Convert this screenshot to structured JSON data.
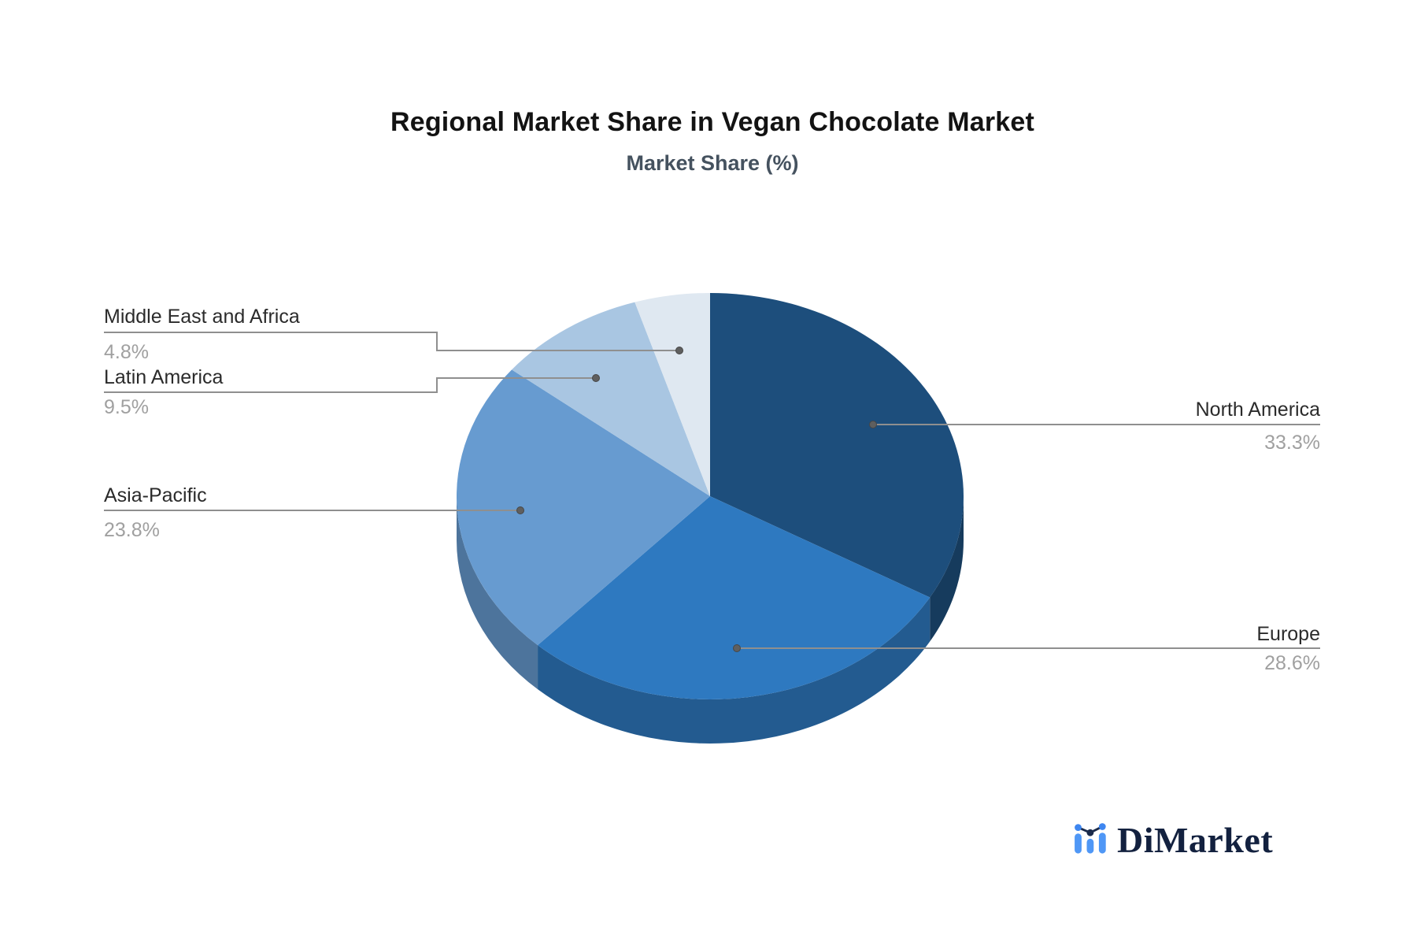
{
  "page": {
    "background": "#ffffff"
  },
  "chart_data": {
    "type": "pie",
    "title": "Regional Market Share in Vegan Chocolate Market",
    "subtitle": "Market Share (%)",
    "unit": "%",
    "labels": [
      "North America",
      "Europe",
      "Asia-Pacific",
      "Latin America",
      "Middle East and Africa"
    ],
    "values": [
      33.3,
      28.6,
      23.8,
      9.5,
      4.8
    ],
    "value_labels": [
      "33.3%",
      "28.6%",
      "23.8%",
      "9.5%",
      "4.8%"
    ],
    "colors": [
      "#1d4e7c",
      "#2e79c0",
      "#679bd0",
      "#a9c6e2",
      "#dfe8f1"
    ],
    "style": "3d-pie",
    "start_angle_deg": 0,
    "clockwise": true,
    "legend": "none",
    "label_layout": "outside-callouts"
  },
  "callouts": {
    "leader_color": "#8f8f8f",
    "dot_color": "#5f5f5f",
    "label_color": "#2b2b2b",
    "value_color": "#a0a0a0"
  },
  "brand": {
    "name": "DiMarket",
    "icon": "dimarket-logo-icon",
    "text_color": "#13213f",
    "accent_color": "#4f97f6",
    "dark_accent_color": "#1b2b4b"
  }
}
